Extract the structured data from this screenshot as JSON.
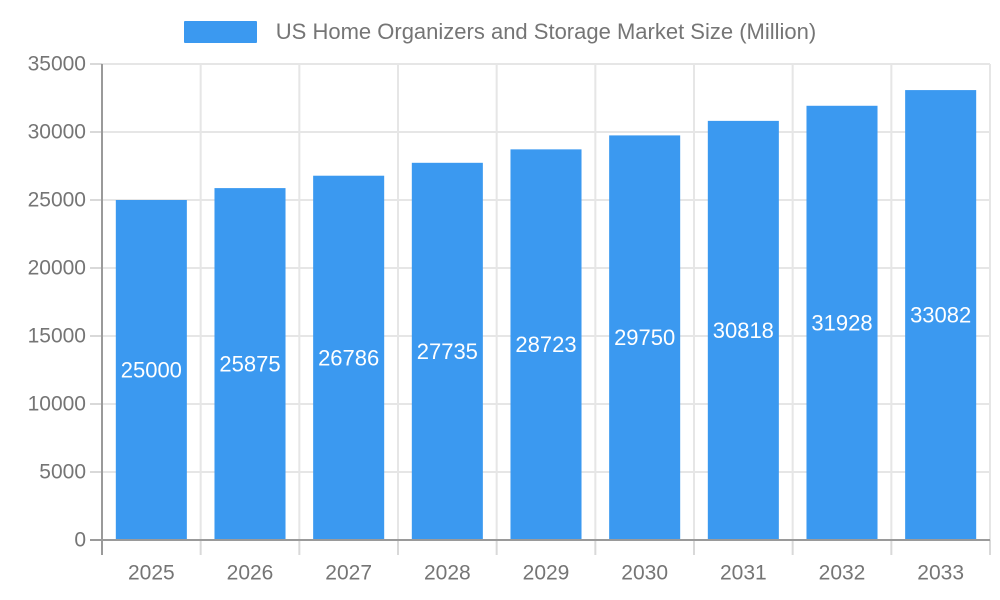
{
  "chart_data": {
    "type": "bar",
    "title": "US Home Organizers and Storage Market Size (Million)",
    "categories": [
      "2025",
      "2026",
      "2027",
      "2028",
      "2029",
      "2030",
      "2031",
      "2032",
      "2033"
    ],
    "series": [
      {
        "name": "US Home Organizers and Storage Market Size (Million)",
        "values": [
          25000,
          25875,
          26786,
          27735,
          28723,
          29750,
          30818,
          31928,
          33082
        ]
      }
    ],
    "xlabel": "",
    "ylabel": "",
    "ylim": [
      0,
      35000
    ],
    "ytick_step": 5000,
    "yticks": [
      0,
      5000,
      10000,
      15000,
      20000,
      25000,
      30000,
      35000
    ],
    "grid": true,
    "legend_position": "top-center",
    "value_labels": "inside-center",
    "colors": {
      "bar": "#3B99F0",
      "value_label": "#FFFFFF",
      "axis_text": "#757575",
      "grid_line": "#E6E6E6",
      "tick_line": "#D9D9D9",
      "axis_line": "#9A9A9A",
      "background": "#FFFFFF"
    }
  }
}
